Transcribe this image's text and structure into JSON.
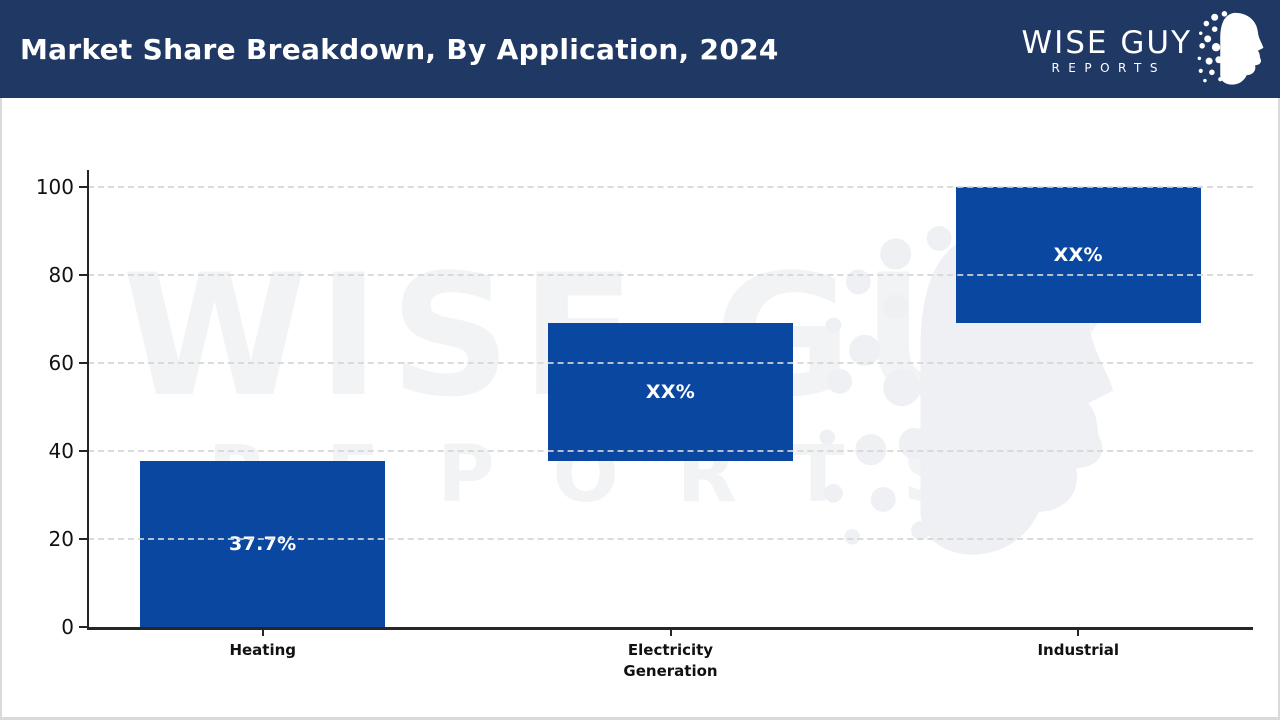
{
  "header": {
    "title": "Market Share Breakdown, By Application, 2024",
    "logo_line1": "WISE GUY",
    "logo_line2": "REPORTS"
  },
  "watermark": {
    "line1": "WISE GUY",
    "line2": "REPORTS"
  },
  "colors": {
    "header_bg": "#1f3864",
    "bar": "#0a47a0",
    "grid": "#d5d5d5",
    "axis": "#262626",
    "bar_label": "#ffffff"
  },
  "chart_data": {
    "type": "bar",
    "subtype": "floating-segment-waterfall",
    "title": "Market Share Breakdown, By Application, 2024",
    "categories": [
      "Heating",
      "Electricity Generation",
      "Industrial"
    ],
    "segments": [
      {
        "category": "Heating",
        "axis_label": "Heating",
        "start": 0,
        "end": 37.7,
        "label": "37.7%"
      },
      {
        "category": "Electricity Generation",
        "axis_label": "Electricity\nGeneration",
        "start": 37.7,
        "end": 69,
        "label": "XX%"
      },
      {
        "category": "Industrial",
        "axis_label": "Industrial",
        "start": 69,
        "end": 100,
        "label": "XX%"
      }
    ],
    "xlabel": "",
    "ylabel": "",
    "ylim": [
      0,
      104
    ],
    "yticks": [
      0,
      20,
      40,
      60,
      80,
      100
    ],
    "grid": "horizontal dashed",
    "legend": "none",
    "bar_color": "#0a47a0",
    "value_label_color": "#ffffff"
  }
}
